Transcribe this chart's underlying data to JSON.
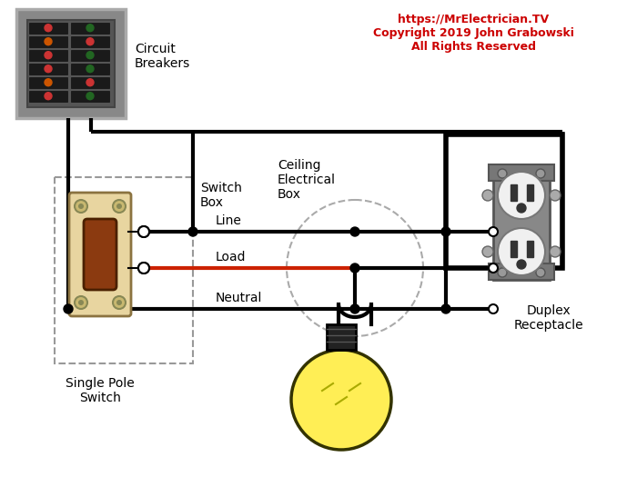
{
  "bg_color": "#ffffff",
  "wire_black": "#000000",
  "wire_red": "#cc2200",
  "label_color": "#000000",
  "copyright_color": "#cc0000",
  "copyright_text": "https://MrElectrician.TV\nCopyright 2019 John Grabowski\nAll Rights Reserved",
  "label_circuit_breakers": "Circuit\nBreakers",
  "label_switch_box": "Switch\nBox",
  "label_ceiling_box": "Ceiling\nElectrical\nBox",
  "label_line": "Line",
  "label_load": "Load",
  "label_neutral": "Neutral",
  "label_single_pole": "Single Pole\nSwitch",
  "label_duplex": "Duplex\nReceptacle"
}
